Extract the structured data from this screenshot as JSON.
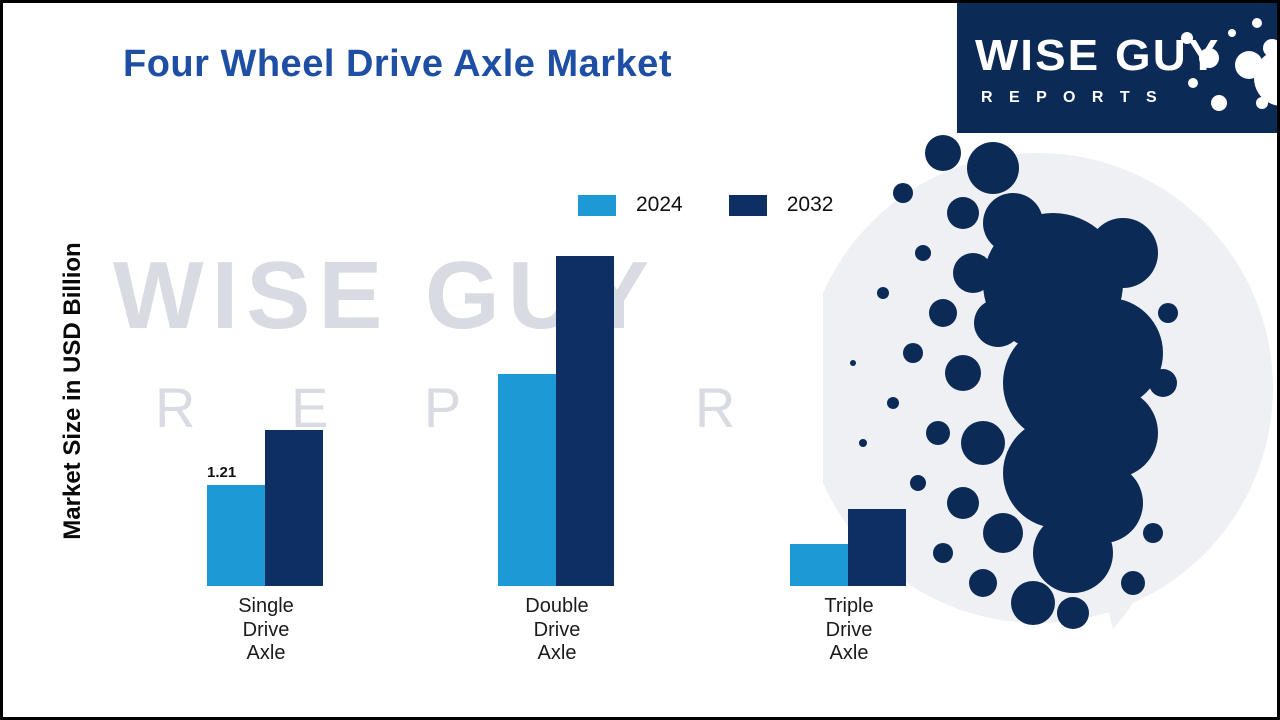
{
  "title": "Four Wheel Drive Axle Market",
  "logo": {
    "line1": "WISE GUY",
    "line2": "R E P O R T S"
  },
  "watermark": {
    "line1": "WISE GUY",
    "line2": "R E P O R T S"
  },
  "colors": {
    "title": "#1e4fa5",
    "logo_background": "#0c2a56",
    "watermark": "#d8dbe2",
    "series_2024": "#1b9ad6",
    "series_2032": "#0e2f63"
  },
  "chart_data": {
    "type": "bar",
    "title": "Four Wheel Drive Axle Market",
    "ylabel": "Market Size in USD Billion",
    "xlabel": "",
    "ylim": [
      0,
      4.2
    ],
    "grid": false,
    "legend_position": "top-center",
    "categories": [
      "Single Drive Axle",
      "Double Drive Axle",
      "Triple Drive Axle"
    ],
    "series": [
      {
        "name": "2024",
        "color": "#1b9ad6",
        "values": [
          1.21,
          2.54,
          0.5
        ]
      },
      {
        "name": "2032",
        "color": "#0e2f63",
        "values": [
          1.87,
          3.95,
          0.92
        ]
      }
    ],
    "data_labels": [
      {
        "series": "2024",
        "category": "Single Drive Axle",
        "label": "1.21"
      }
    ]
  }
}
